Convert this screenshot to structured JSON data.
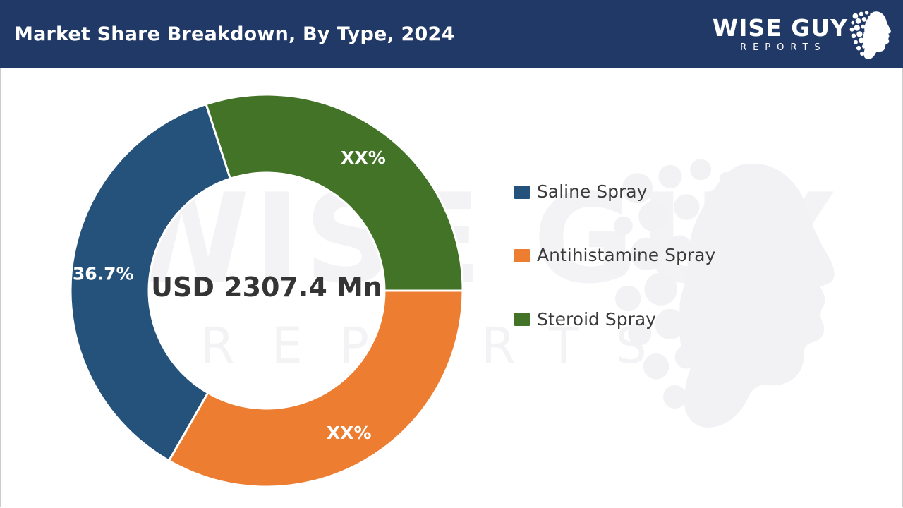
{
  "header": {
    "title": "Market Share Breakdown, By Type, 2024",
    "logo": {
      "line1": "WISE GUY",
      "line2": "REPORTS"
    }
  },
  "watermark": {
    "line1": "WISE GUY",
    "line2": "REPORTS"
  },
  "colors": {
    "header_bg": "#213966",
    "saline_blue": "#24527B",
    "antihistamine_orange": "#EC7D31",
    "steroid_green": "#427327",
    "center_text": "#343434",
    "legend_text": "#3a3a3a",
    "border": "#cccccc",
    "watermark": "#f3f3f6"
  },
  "chart_data": {
    "type": "pie",
    "subtype": "donut",
    "title": "Market Share Breakdown, By Type, 2024",
    "center_text": "USD 2307.4 Mn",
    "start_angle": 108,
    "direction": "counterclockwise",
    "legend_position": "right",
    "series": [
      {
        "name": "Saline Spray",
        "color": "#24527B",
        "display_label": "36.7%",
        "value": 36.7,
        "value_is_estimate": false
      },
      {
        "name": "Antihistamine Spray",
        "color": "#EC7D31",
        "display_label": "XX%",
        "value": 33.3,
        "value_is_estimate": true
      },
      {
        "name": "Steroid Spray",
        "color": "#427327",
        "display_label": "XX%",
        "value": 30.0,
        "value_is_estimate": true
      }
    ]
  }
}
